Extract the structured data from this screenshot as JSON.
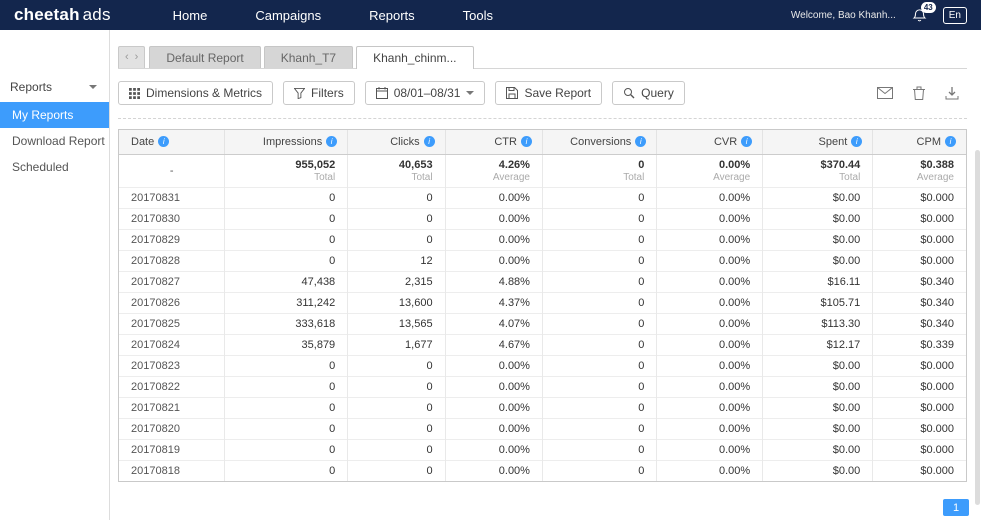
{
  "navbar": {
    "brand_bold": "cheetah",
    "brand_light": "ads",
    "items": [
      {
        "label": "Home"
      },
      {
        "label": "Campaigns"
      },
      {
        "label": "Reports"
      },
      {
        "label": "Tools"
      }
    ],
    "welcome_text": "Welcome,",
    "username": "Bao Khanh...",
    "notification_count": "43",
    "language": "En"
  },
  "sidebar": {
    "section_label": "Reports",
    "items": [
      {
        "label": "My Reports",
        "active": true
      },
      {
        "label": "Download Report",
        "active": false
      },
      {
        "label": "Scheduled",
        "active": false
      }
    ]
  },
  "tabs": {
    "items": [
      {
        "label": "Default Report",
        "active": false
      },
      {
        "label": "Khanh_T7",
        "active": false
      },
      {
        "label": "Khanh_chinm...",
        "active": true
      }
    ]
  },
  "toolbar": {
    "dimensions_metrics_label": "Dimensions & Metrics",
    "filters_label": "Filters",
    "date_range_label": "08/01–08/31",
    "save_report_label": "Save Report",
    "query_label": "Query"
  },
  "table": {
    "columns": [
      "Date",
      "Impressions",
      "Clicks",
      "CTR",
      "Conversions",
      "CVR",
      "Spent",
      "CPM"
    ],
    "totals": {
      "date": "-",
      "cells": [
        {
          "value": "955,052",
          "sublabel": "Total"
        },
        {
          "value": "40,653",
          "sublabel": "Total"
        },
        {
          "value": "4.26%",
          "sublabel": "Average"
        },
        {
          "value": "0",
          "sublabel": "Total"
        },
        {
          "value": "0.00%",
          "sublabel": "Average"
        },
        {
          "value": "$370.44",
          "sublabel": "Total"
        },
        {
          "value": "$0.388",
          "sublabel": "Average"
        }
      ]
    },
    "rows": [
      [
        "20170831",
        "0",
        "0",
        "0.00%",
        "0",
        "0.00%",
        "$0.00",
        "$0.000"
      ],
      [
        "20170830",
        "0",
        "0",
        "0.00%",
        "0",
        "0.00%",
        "$0.00",
        "$0.000"
      ],
      [
        "20170829",
        "0",
        "0",
        "0.00%",
        "0",
        "0.00%",
        "$0.00",
        "$0.000"
      ],
      [
        "20170828",
        "0",
        "12",
        "0.00%",
        "0",
        "0.00%",
        "$0.00",
        "$0.000"
      ],
      [
        "20170827",
        "47,438",
        "2,315",
        "4.88%",
        "0",
        "0.00%",
        "$16.11",
        "$0.340"
      ],
      [
        "20170826",
        "311,242",
        "13,600",
        "4.37%",
        "0",
        "0.00%",
        "$105.71",
        "$0.340"
      ],
      [
        "20170825",
        "333,618",
        "13,565",
        "4.07%",
        "0",
        "0.00%",
        "$113.30",
        "$0.340"
      ],
      [
        "20170824",
        "35,879",
        "1,677",
        "4.67%",
        "0",
        "0.00%",
        "$12.17",
        "$0.339"
      ],
      [
        "20170823",
        "0",
        "0",
        "0.00%",
        "0",
        "0.00%",
        "$0.00",
        "$0.000"
      ],
      [
        "20170822",
        "0",
        "0",
        "0.00%",
        "0",
        "0.00%",
        "$0.00",
        "$0.000"
      ],
      [
        "20170821",
        "0",
        "0",
        "0.00%",
        "0",
        "0.00%",
        "$0.00",
        "$0.000"
      ],
      [
        "20170820",
        "0",
        "0",
        "0.00%",
        "0",
        "0.00%",
        "$0.00",
        "$0.000"
      ],
      [
        "20170819",
        "0",
        "0",
        "0.00%",
        "0",
        "0.00%",
        "$0.00",
        "$0.000"
      ],
      [
        "20170818",
        "0",
        "0",
        "0.00%",
        "0",
        "0.00%",
        "$0.00",
        "$0.000"
      ]
    ]
  },
  "pagination": {
    "current_page": "1"
  },
  "colors": {
    "navbar_bg": "#13264d",
    "accent_blue": "#3d9cfc"
  }
}
